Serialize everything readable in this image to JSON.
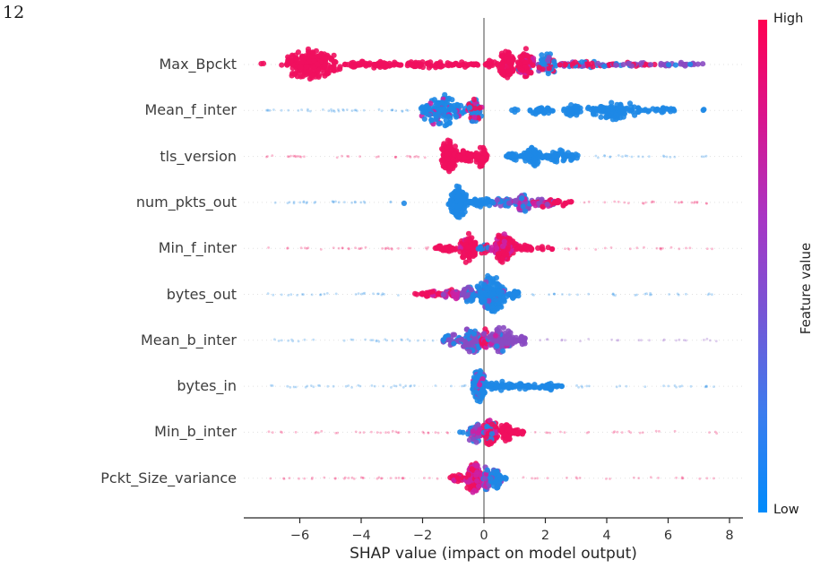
{
  "page_number": "12",
  "chart_data": {
    "type": "scatter",
    "variant": "shap-beeswarm-summary",
    "title": "",
    "xlabel": "SHAP value (impact on model output)",
    "ylabel": "",
    "x_ticks": [
      -6,
      -4,
      -2,
      0,
      2,
      4,
      6,
      8
    ],
    "xlim": [
      -7.8,
      8.4
    ],
    "zero_reference_line": 0,
    "grid": "faint dashed horizontal per feature row",
    "legend_position": "right colorbar",
    "colorbar": {
      "high_label": "High",
      "low_label": "Low",
      "axis_label": "Feature value",
      "gradient": [
        "#ff0051",
        "#d9158e",
        "#a935c4",
        "#7556d6",
        "#3b7cee",
        "#008bfb"
      ]
    },
    "palette": {
      "red": "#ef0f5e",
      "magenta": "#cc20a4",
      "purple": "#8a4ac2",
      "blue": "#1e88e5"
    },
    "features": [
      {
        "name": "Max_Bpckt",
        "clusters": [
          {
            "x0": -7.3,
            "x1": -7.1,
            "h": 5,
            "n": 2,
            "mix": {
              "red": 1
            }
          },
          {
            "x0": -6.65,
            "x1": -4.55,
            "h": 37,
            "n": 230,
            "mix": {
              "red": 1
            },
            "blob": true
          },
          {
            "x0": -4.55,
            "x1": -2.7,
            "h": 9,
            "n": 65,
            "mix": {
              "red": 1
            }
          },
          {
            "x0": -2.7,
            "x1": -1.0,
            "h": 9,
            "n": 55,
            "mix": {
              "red": 1
            }
          },
          {
            "x0": -1.0,
            "x1": -0.15,
            "h": 7,
            "n": 22,
            "mix": {
              "red": 1
            }
          },
          {
            "x0": 0.05,
            "x1": 0.45,
            "h": 13,
            "n": 16,
            "mix": {
              "red": 1
            }
          },
          {
            "x0": 0.45,
            "x1": 1.05,
            "h": 34,
            "n": 85,
            "mix": {
              "red": 0.95,
              "magenta": 0.05
            },
            "blob": true
          },
          {
            "x0": 1.05,
            "x1": 1.65,
            "h": 36,
            "n": 100,
            "mix": {
              "red": 0.85,
              "magenta": 0.1,
              "blue": 0.05
            },
            "blob": true
          },
          {
            "x0": 1.65,
            "x1": 2.45,
            "h": 26,
            "n": 55,
            "mix": {
              "blue": 0.55,
              "red": 0.3,
              "purple": 0.15
            },
            "blob": true
          },
          {
            "x0": 2.45,
            "x1": 4.2,
            "h": 8,
            "n": 50,
            "mix": {
              "red": 0.5,
              "purple": 0.3,
              "blue": 0.2
            }
          },
          {
            "x0": 4.2,
            "x1": 5.6,
            "h": 7,
            "n": 28,
            "mix": {
              "purple": 0.5,
              "red": 0.4,
              "blue": 0.1
            }
          },
          {
            "x0": 5.6,
            "x1": 7.35,
            "h": 6,
            "n": 22,
            "mix": {
              "purple": 0.8,
              "blue": 0.2
            }
          }
        ]
      },
      {
        "name": "Mean_f_inter",
        "clusters": [
          {
            "x0": -7.1,
            "x1": -2.3,
            "h": 3,
            "n": 38,
            "mix": {
              "blue": 1
            },
            "faint": true
          },
          {
            "x0": -2.15,
            "x1": -0.6,
            "h": 36,
            "n": 160,
            "mix": {
              "blue": 0.88,
              "magenta": 0.12
            },
            "blob": true
          },
          {
            "x0": -0.6,
            "x1": -0.02,
            "h": 30,
            "n": 80,
            "mix": {
              "blue": 0.5,
              "red": 0.35,
              "magenta": 0.15
            },
            "blob": true
          },
          {
            "x0": 0.85,
            "x1": 1.15,
            "h": 5,
            "n": 4,
            "mix": {
              "blue": 1
            }
          },
          {
            "x0": 1.5,
            "x1": 2.25,
            "h": 11,
            "n": 26,
            "mix": {
              "blue": 1
            }
          },
          {
            "x0": 2.55,
            "x1": 3.3,
            "h": 16,
            "n": 42,
            "mix": {
              "blue": 1
            },
            "blob": true
          },
          {
            "x0": 3.3,
            "x1": 5.2,
            "h": 22,
            "n": 110,
            "mix": {
              "blue": 1
            },
            "blob": true
          },
          {
            "x0": 5.2,
            "x1": 6.3,
            "h": 8,
            "n": 22,
            "mix": {
              "blue": 1
            }
          },
          {
            "x0": 7.1,
            "x1": 7.3,
            "h": 4,
            "n": 2,
            "mix": {
              "blue": 1
            }
          }
        ]
      },
      {
        "name": "tls_version",
        "clusters": [
          {
            "x0": -7.1,
            "x1": -1.6,
            "h": 3,
            "n": 30,
            "mix": {
              "red": 1
            },
            "faint": true
          },
          {
            "x0": -1.45,
            "x1": -0.85,
            "h": 40,
            "n": 120,
            "mix": {
              "red": 1
            },
            "blob": true
          },
          {
            "x0": -0.85,
            "x1": -0.32,
            "h": 17,
            "n": 55,
            "mix": {
              "red": 1
            }
          },
          {
            "x0": -0.32,
            "x1": 0.12,
            "h": 24,
            "n": 55,
            "mix": {
              "red": 1
            },
            "blob": true
          },
          {
            "x0": 0.72,
            "x1": 1.25,
            "h": 12,
            "n": 26,
            "mix": {
              "blue": 1
            }
          },
          {
            "x0": 1.25,
            "x1": 1.95,
            "h": 26,
            "n": 65,
            "mix": {
              "blue": 1
            },
            "blob": true
          },
          {
            "x0": 1.95,
            "x1": 3.1,
            "h": 15,
            "n": 55,
            "mix": {
              "blue": 1
            }
          },
          {
            "x0": 3.5,
            "x1": 7.5,
            "h": 3,
            "n": 22,
            "mix": {
              "blue": 1
            },
            "faint": true
          }
        ]
      },
      {
        "name": "num_pkts_out",
        "clusters": [
          {
            "x0": -7.1,
            "x1": -2.9,
            "h": 3,
            "n": 26,
            "mix": {
              "blue": 1
            },
            "faint": true
          },
          {
            "x0": -2.65,
            "x1": -2.55,
            "h": 4,
            "n": 1,
            "mix": {
              "blue": 1
            }
          },
          {
            "x0": -1.2,
            "x1": -0.5,
            "h": 42,
            "n": 140,
            "mix": {
              "blue": 1
            },
            "blob": true
          },
          {
            "x0": -0.5,
            "x1": 0.3,
            "h": 12,
            "n": 45,
            "mix": {
              "blue": 1
            }
          },
          {
            "x0": 0.3,
            "x1": 0.95,
            "h": 12,
            "n": 35,
            "mix": {
              "blue": 0.6,
              "purple": 0.4
            }
          },
          {
            "x0": 0.95,
            "x1": 1.6,
            "h": 26,
            "n": 75,
            "mix": {
              "purple": 0.65,
              "blue": 0.25,
              "magenta": 0.1
            },
            "blob": true
          },
          {
            "x0": 1.6,
            "x1": 2.3,
            "h": 14,
            "n": 38,
            "mix": {
              "red": 0.5,
              "purple": 0.35,
              "magenta": 0.15
            }
          },
          {
            "x0": 2.3,
            "x1": 2.85,
            "h": 9,
            "n": 15,
            "mix": {
              "red": 1
            }
          },
          {
            "x0": 3.2,
            "x1": 7.6,
            "h": 3,
            "n": 24,
            "mix": {
              "red": 1
            },
            "faint": true
          }
        ]
      },
      {
        "name": "Min_f_inter",
        "clusters": [
          {
            "x0": -7.1,
            "x1": -1.8,
            "h": 3,
            "n": 32,
            "mix": {
              "red": 1
            },
            "faint": true
          },
          {
            "x0": -1.6,
            "x1": -0.85,
            "h": 9,
            "n": 35,
            "mix": {
              "red": 1
            }
          },
          {
            "x0": -0.85,
            "x1": -0.2,
            "h": 34,
            "n": 110,
            "mix": {
              "red": 0.95,
              "magenta": 0.05
            },
            "blob": true
          },
          {
            "x0": -0.2,
            "x1": 0.18,
            "h": 14,
            "n": 28,
            "mix": {
              "blue": 0.55,
              "red": 0.45
            }
          },
          {
            "x0": 0.18,
            "x1": 1.1,
            "h": 36,
            "n": 120,
            "mix": {
              "red": 0.72,
              "magenta": 0.28
            },
            "blob": true
          },
          {
            "x0": 1.1,
            "x1": 1.6,
            "h": 10,
            "n": 22,
            "mix": {
              "red": 1
            }
          },
          {
            "x0": 1.7,
            "x1": 2.25,
            "h": 6,
            "n": 7,
            "mix": {
              "red": 1
            }
          },
          {
            "x0": 2.6,
            "x1": 7.6,
            "h": 3,
            "n": 22,
            "mix": {
              "red": 1
            },
            "faint": true
          }
        ]
      },
      {
        "name": "bytes_out",
        "clusters": [
          {
            "x0": -7.1,
            "x1": -2.5,
            "h": 3,
            "n": 26,
            "mix": {
              "blue": 1
            },
            "faint": true
          },
          {
            "x0": -2.3,
            "x1": -2.15,
            "h": 4,
            "n": 2,
            "mix": {
              "red": 1
            }
          },
          {
            "x0": -2.05,
            "x1": -1.35,
            "h": 8,
            "n": 24,
            "mix": {
              "red": 0.8,
              "magenta": 0.2
            }
          },
          {
            "x0": -1.35,
            "x1": -0.7,
            "h": 14,
            "n": 42,
            "mix": {
              "magenta": 0.4,
              "purple": 0.35,
              "red": 0.25
            }
          },
          {
            "x0": -0.7,
            "x1": -0.3,
            "h": 20,
            "n": 50,
            "mix": {
              "purple": 0.45,
              "blue": 0.4,
              "magenta": 0.15
            }
          },
          {
            "x0": -0.3,
            "x1": 0.78,
            "h": 44,
            "n": 210,
            "mix": {
              "blue": 0.92,
              "purple": 0.08
            },
            "blob": true
          },
          {
            "x0": 0.78,
            "x1": 1.15,
            "h": 12,
            "n": 22,
            "mix": {
              "blue": 1
            }
          },
          {
            "x0": 1.5,
            "x1": 7.6,
            "h": 3,
            "n": 28,
            "mix": {
              "blue": 1
            },
            "faint": true
          }
        ]
      },
      {
        "name": "Mean_b_inter",
        "clusters": [
          {
            "x0": -7.1,
            "x1": -1.5,
            "h": 3,
            "n": 28,
            "mix": {
              "blue": 1
            },
            "faint": true
          },
          {
            "x0": -1.35,
            "x1": -0.75,
            "h": 16,
            "n": 36,
            "mix": {
              "purple": 0.55,
              "blue": 0.45
            }
          },
          {
            "x0": -0.75,
            "x1": -0.05,
            "h": 32,
            "n": 110,
            "mix": {
              "purple": 0.5,
              "blue": 0.5
            },
            "blob": true
          },
          {
            "x0": -0.08,
            "x1": 0.12,
            "h": 30,
            "n": 26,
            "mix": {
              "red": 0.55,
              "magenta": 0.3,
              "purple": 0.15
            }
          },
          {
            "x0": 0.12,
            "x1": 1.0,
            "h": 30,
            "n": 110,
            "mix": {
              "purple": 0.85,
              "magenta": 0.1,
              "blue": 0.05
            },
            "blob": true
          },
          {
            "x0": 1.0,
            "x1": 1.4,
            "h": 12,
            "n": 20,
            "mix": {
              "purple": 1
            }
          },
          {
            "x0": 1.8,
            "x1": 7.6,
            "h": 3,
            "n": 24,
            "mix": {
              "purple": 1
            },
            "faint": true
          }
        ]
      },
      {
        "name": "bytes_in",
        "clusters": [
          {
            "x0": -7.1,
            "x1": -0.6,
            "h": 3,
            "n": 36,
            "mix": {
              "blue": 1
            },
            "faint": true
          },
          {
            "x0": -0.4,
            "x1": 0.08,
            "h": 42,
            "n": 140,
            "mix": {
              "blue": 0.85,
              "magenta": 0.1,
              "purple": 0.05
            },
            "blob": true
          },
          {
            "x0": 0.08,
            "x1": 0.95,
            "h": 12,
            "n": 55,
            "mix": {
              "blue": 1
            }
          },
          {
            "x0": 0.95,
            "x1": 1.55,
            "h": 8,
            "n": 25,
            "mix": {
              "blue": 1
            }
          },
          {
            "x0": 1.55,
            "x1": 2.45,
            "h": 10,
            "n": 30,
            "mix": {
              "blue": 1
            }
          },
          {
            "x0": 2.45,
            "x1": 2.6,
            "h": 4,
            "n": 2,
            "mix": {
              "blue": 1
            }
          },
          {
            "x0": 2.9,
            "x1": 7.6,
            "h": 3,
            "n": 22,
            "mix": {
              "blue": 1
            },
            "faint": true
          }
        ]
      },
      {
        "name": "Min_b_inter",
        "clusters": [
          {
            "x0": -7.1,
            "x1": -1.0,
            "h": 3,
            "n": 32,
            "mix": {
              "red": 1
            },
            "faint": true
          },
          {
            "x0": -0.8,
            "x1": -0.68,
            "h": 5,
            "n": 2,
            "mix": {
              "blue": 1
            }
          },
          {
            "x0": -0.55,
            "x1": -0.05,
            "h": 26,
            "n": 55,
            "mix": {
              "purple": 0.4,
              "blue": 0.3,
              "magenta": 0.3
            },
            "blob": true
          },
          {
            "x0": -0.05,
            "x1": 0.5,
            "h": 32,
            "n": 100,
            "mix": {
              "red": 0.68,
              "magenta": 0.17,
              "blue": 0.15
            },
            "blob": true
          },
          {
            "x0": 0.5,
            "x1": 0.95,
            "h": 26,
            "n": 70,
            "mix": {
              "red": 1
            },
            "blob": true
          },
          {
            "x0": 0.95,
            "x1": 1.3,
            "h": 12,
            "n": 18,
            "mix": {
              "red": 1
            }
          },
          {
            "x0": 1.6,
            "x1": 7.6,
            "h": 3,
            "n": 22,
            "mix": {
              "red": 1
            },
            "faint": true
          }
        ]
      },
      {
        "name": "Pckt_Size_variance",
        "clusters": [
          {
            "x0": -7.1,
            "x1": -1.2,
            "h": 3,
            "n": 32,
            "mix": {
              "red": 1
            },
            "faint": true
          },
          {
            "x0": -1.1,
            "x1": -0.62,
            "h": 10,
            "n": 26,
            "mix": {
              "red": 0.7,
              "magenta": 0.3
            }
          },
          {
            "x0": -0.62,
            "x1": -0.05,
            "h": 40,
            "n": 140,
            "mix": {
              "magenta": 0.55,
              "red": 0.45
            },
            "blob": true
          },
          {
            "x0": -0.05,
            "x1": 0.2,
            "h": 34,
            "n": 55,
            "mix": {
              "purple": 0.5,
              "blue": 0.3,
              "magenta": 0.2
            },
            "blob": true
          },
          {
            "x0": 0.2,
            "x1": 0.6,
            "h": 26,
            "n": 60,
            "mix": {
              "blue": 0.85,
              "purple": 0.15
            },
            "blob": true
          },
          {
            "x0": 0.6,
            "x1": 0.72,
            "h": 5,
            "n": 3,
            "mix": {
              "blue": 1
            }
          },
          {
            "x0": 1.0,
            "x1": 7.6,
            "h": 3,
            "n": 22,
            "mix": {
              "red": 1
            },
            "faint": true
          }
        ]
      }
    ]
  }
}
